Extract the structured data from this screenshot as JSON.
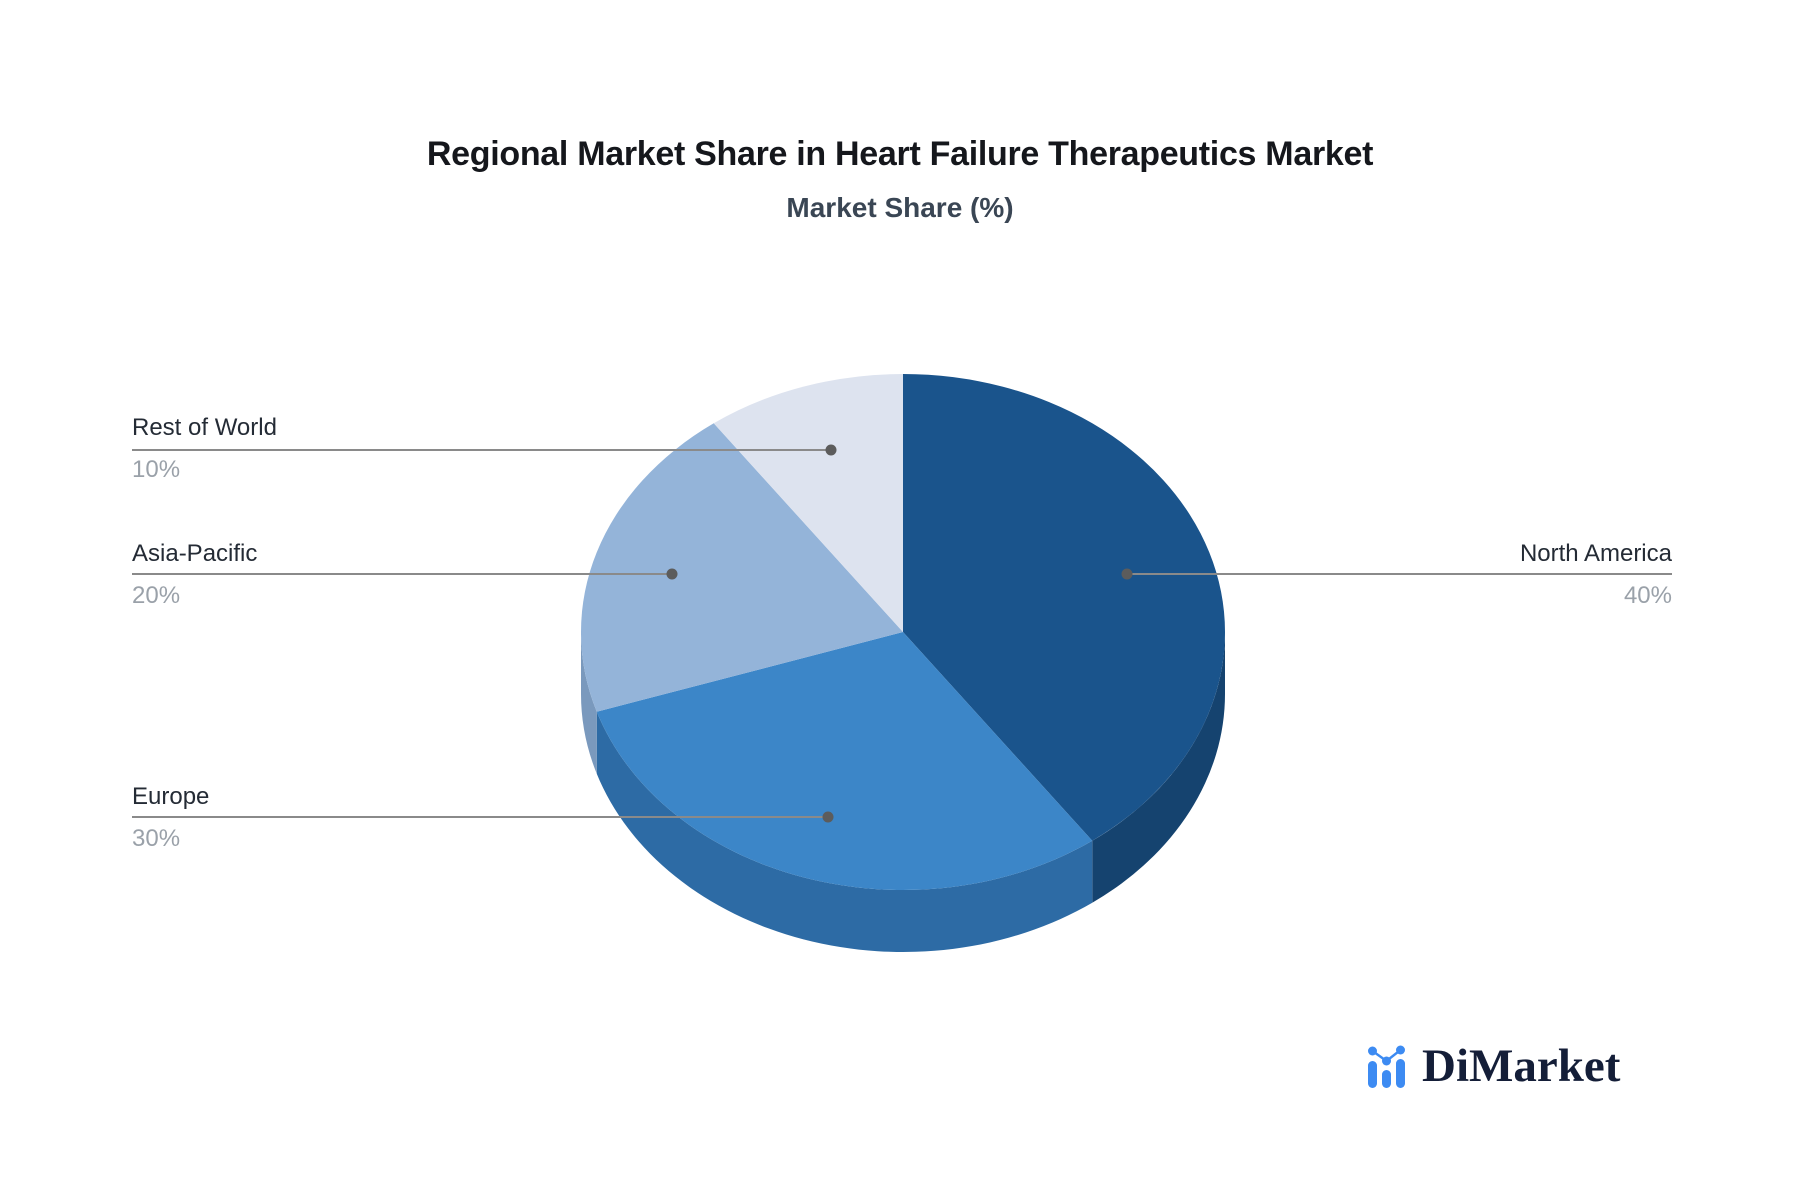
{
  "header": {
    "title": "Regional Market Share in Heart Failure Therapeutics Market",
    "subtitle": "Market Share (%)"
  },
  "chart_data": {
    "type": "pie",
    "effect": "3d",
    "title": "Regional Market Share in Heart Failure Therapeutics Market",
    "subtitle": "Market Share (%)",
    "unit": "%",
    "start_angle_deg": 0,
    "direction": "clockwise",
    "categories": [
      "North America",
      "Europe",
      "Asia-Pacific",
      "Rest of World"
    ],
    "values": [
      40,
      30,
      20,
      10
    ],
    "colors": [
      "#1A548C",
      "#3C86C8",
      "#94B4D9",
      "#DDE3EF"
    ],
    "side_colors": [
      "#15436F",
      "#2D6BA5",
      "#7A99BD",
      "#B9C4D6"
    ],
    "leader_line_color": "#8a8a8a",
    "leader_dot_color": "#5c5c5c",
    "callouts": [
      {
        "label": "North America",
        "value_label": "40%",
        "side": "right"
      },
      {
        "label": "Europe",
        "value_label": "30%",
        "side": "left"
      },
      {
        "label": "Asia-Pacific",
        "value_label": "20%",
        "side": "left"
      },
      {
        "label": "Rest of World",
        "value_label": "10%",
        "side": "left"
      }
    ],
    "legend": "none"
  },
  "branding": {
    "logo_text": "DiMarket",
    "logo_icon": "bar-chart-with-trend-dots-icon",
    "logo_icon_color": "#3D8BF2",
    "logo_text_color": "#141E38"
  }
}
